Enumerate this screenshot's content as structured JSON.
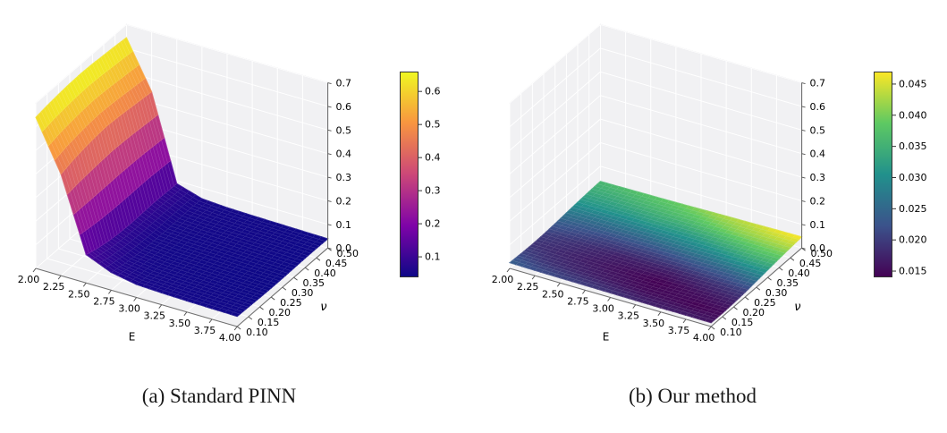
{
  "figure": {
    "background": "#ffffff",
    "panels": [
      {
        "caption": "(a) Standard PINN"
      },
      {
        "caption": "(b) Our method"
      }
    ]
  },
  "chart_data": [
    {
      "type": "surface3d",
      "title": "",
      "xlabel": "E",
      "ylabel": "ν",
      "zlabel": "",
      "xlim": [
        2.0,
        4.0
      ],
      "ylim": [
        0.1,
        0.5
      ],
      "zlim": [
        0.0,
        0.7
      ],
      "x": [
        2.0,
        2.25,
        2.5,
        2.75,
        3.0,
        3.25,
        3.5,
        3.75,
        4.0
      ],
      "y": [
        0.1,
        0.15,
        0.2,
        0.25,
        0.3,
        0.35,
        0.4,
        0.45,
        0.5
      ],
      "z": [
        [
          0.64,
          0.648,
          0.654,
          0.658,
          0.66,
          0.658,
          0.654,
          0.65,
          0.645
        ],
        [
          0.43,
          0.445,
          0.455,
          0.462,
          0.466,
          0.463,
          0.458,
          0.452,
          0.447
        ],
        [
          0.12,
          0.105,
          0.095,
          0.09,
          0.088,
          0.09,
          0.092,
          0.09,
          0.088
        ],
        [
          0.075,
          0.065,
          0.058,
          0.054,
          0.052,
          0.052,
          0.054,
          0.056,
          0.055
        ],
        [
          0.055,
          0.05,
          0.048,
          0.046,
          0.046,
          0.047,
          0.048,
          0.049,
          0.048
        ],
        [
          0.05,
          0.047,
          0.045,
          0.044,
          0.044,
          0.045,
          0.046,
          0.046,
          0.045
        ],
        [
          0.047,
          0.045,
          0.043,
          0.042,
          0.042,
          0.043,
          0.044,
          0.044,
          0.043
        ],
        [
          0.045,
          0.043,
          0.041,
          0.04,
          0.04,
          0.041,
          0.042,
          0.042,
          0.041
        ],
        [
          0.043,
          0.041,
          0.039,
          0.038,
          0.038,
          0.039,
          0.04,
          0.04,
          0.039
        ]
      ],
      "x_tick_labels": [
        "2.00",
        "2.25",
        "2.50",
        "2.75",
        "3.00",
        "3.25",
        "3.50",
        "3.75",
        "4.00"
      ],
      "y_tick_labels": [
        "0.10",
        "0.15",
        "0.20",
        "0.25",
        "0.30",
        "0.35",
        "0.40",
        "0.45",
        "0.50"
      ],
      "z_tick_labels": [
        "0.0",
        "0.1",
        "0.2",
        "0.3",
        "0.4",
        "0.5",
        "0.6",
        "0.7"
      ],
      "colormap": "plasma",
      "colormap_stops": [
        "#0d0887",
        "#7e03a8",
        "#cc4778",
        "#f89540",
        "#f0f921"
      ],
      "colorbar_tick_labels": [
        "0.1",
        "0.2",
        "0.3",
        "0.4",
        "0.5",
        "0.6"
      ],
      "grid": true,
      "legend": "colorbar-right"
    },
    {
      "type": "surface3d",
      "title": "",
      "xlabel": "E",
      "ylabel": "ν",
      "zlabel": "",
      "xlim": [
        2.0,
        4.0
      ],
      "ylim": [
        0.1,
        0.5
      ],
      "zlim": [
        0.0,
        0.7
      ],
      "x": [
        2.0,
        2.25,
        2.5,
        2.75,
        3.0,
        3.25,
        3.5,
        3.75,
        4.0
      ],
      "y": [
        0.1,
        0.15,
        0.2,
        0.25,
        0.3,
        0.35,
        0.4,
        0.45,
        0.5
      ],
      "z": [
        [
          0.024,
          0.021,
          0.019,
          0.02,
          0.023,
          0.027,
          0.031,
          0.034,
          0.036
        ],
        [
          0.022,
          0.019,
          0.018,
          0.019,
          0.022,
          0.026,
          0.031,
          0.034,
          0.037
        ],
        [
          0.021,
          0.018,
          0.017,
          0.018,
          0.021,
          0.026,
          0.031,
          0.035,
          0.038
        ],
        [
          0.02,
          0.017,
          0.016,
          0.017,
          0.021,
          0.026,
          0.032,
          0.036,
          0.039
        ],
        [
          0.019,
          0.016,
          0.015,
          0.017,
          0.021,
          0.027,
          0.032,
          0.037,
          0.041
        ],
        [
          0.018,
          0.015,
          0.014,
          0.017,
          0.022,
          0.028,
          0.033,
          0.039,
          0.043
        ],
        [
          0.017,
          0.015,
          0.015,
          0.018,
          0.023,
          0.029,
          0.035,
          0.041,
          0.044
        ],
        [
          0.017,
          0.014,
          0.016,
          0.019,
          0.024,
          0.031,
          0.037,
          0.042,
          0.046
        ],
        [
          0.016,
          0.015,
          0.017,
          0.02,
          0.026,
          0.032,
          0.038,
          0.043,
          0.047
        ]
      ],
      "x_tick_labels": [
        "2.00",
        "2.25",
        "2.50",
        "2.75",
        "3.00",
        "3.25",
        "3.50",
        "3.75",
        "4.00"
      ],
      "y_tick_labels": [
        "0.10",
        "0.15",
        "0.20",
        "0.25",
        "0.30",
        "0.35",
        "0.40",
        "0.45",
        "0.50"
      ],
      "z_tick_labels": [
        "0.0",
        "0.1",
        "0.2",
        "0.3",
        "0.4",
        "0.5",
        "0.6",
        "0.7"
      ],
      "colormap": "viridis",
      "colormap_stops": [
        "#440154",
        "#3b528b",
        "#21918c",
        "#5ec962",
        "#fde725"
      ],
      "colorbar_tick_labels": [
        "0.015",
        "0.020",
        "0.025",
        "0.030",
        "0.035",
        "0.040",
        "0.045"
      ],
      "grid": true,
      "legend": "colorbar-right"
    }
  ]
}
